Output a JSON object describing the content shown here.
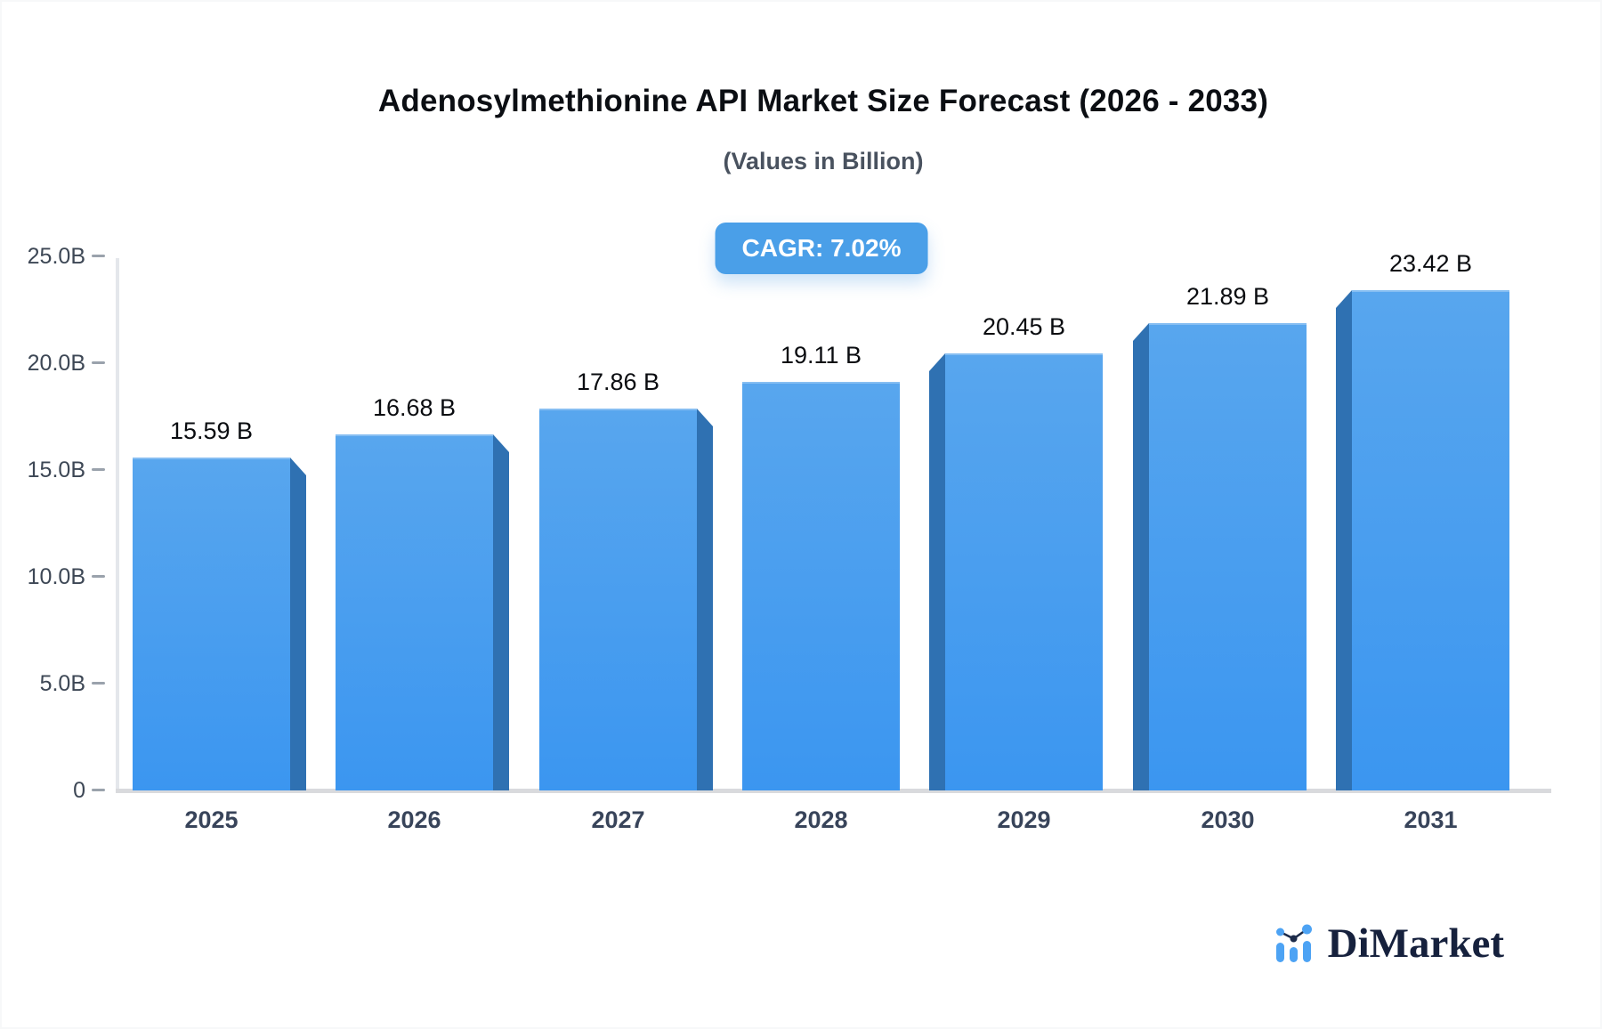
{
  "header": {
    "title": "Adenosylmethionine API Market Size Forecast (2026 - 2033)",
    "subtitle": "(Values in Billion)",
    "cagr_badge": "CAGR: 7.02%"
  },
  "chart_data": {
    "type": "bar",
    "title": "Adenosylmethionine API Market Size Forecast (2026 - 2033)",
    "subtitle": "(Values in Billion)",
    "cagr": "CAGR: 7.02%",
    "categories": [
      "2025",
      "2026",
      "2027",
      "2028",
      "2029",
      "2030",
      "2031"
    ],
    "values": [
      15.59,
      16.68,
      17.86,
      19.11,
      20.45,
      21.89,
      23.42
    ],
    "value_labels": [
      "15.59 B",
      "16.68 B",
      "17.86 B",
      "19.11 B",
      "20.45 B",
      "21.89 B",
      "23.42 B"
    ],
    "unit": "Billion",
    "ylim": [
      0,
      25
    ],
    "yticks": [
      0,
      5,
      10,
      15,
      20,
      25
    ],
    "ytick_labels": [
      "0",
      "5.0B",
      "10.0B",
      "15.0B",
      "20.0B",
      "25.0B"
    ],
    "xlabel": "",
    "ylabel": "",
    "grid": false,
    "legend": false,
    "bar_style": "3d-beveled",
    "colors": {
      "bar_top": "#58a6ee",
      "bar_bottom": "#3b96f0",
      "bar_side": "#2f71b2",
      "badge_bg": "#4a9fe8",
      "axis_line": "#e4e7eb",
      "baseline": "#d9dadd",
      "tick": "#9aa2ac",
      "value_label": "#0a0c10",
      "axis_label": "#3d4755"
    }
  },
  "branding": {
    "logo_text": "DiMarket",
    "colors": {
      "icon_blue": "#4da3f4",
      "navy": "#1c2b4a"
    }
  }
}
